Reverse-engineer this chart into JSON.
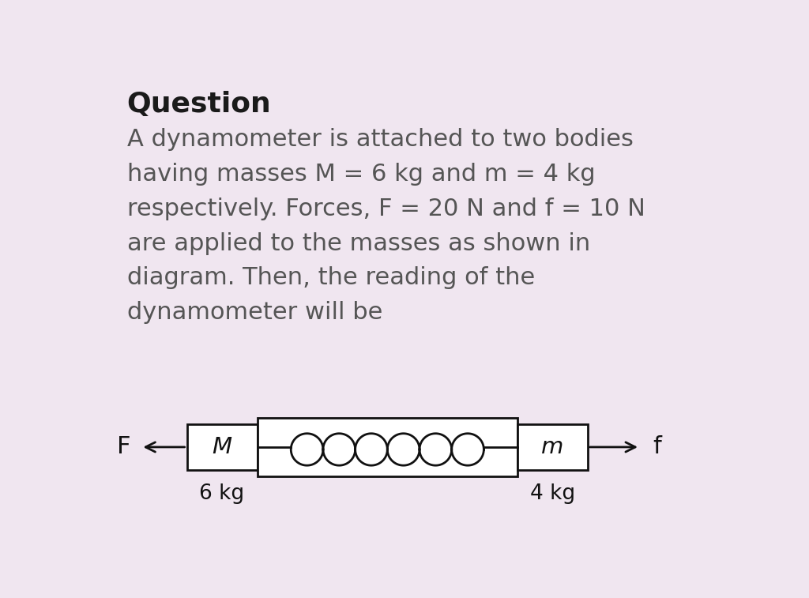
{
  "background_color": "#f0e6f0",
  "title": "Question",
  "title_fontsize": 26,
  "title_color": "#1a1a1a",
  "body_text": "A dynamometer is attached to two bodies\nhaving masses M = 6 kg and m = 4 kg\nrespectively. Forces, F = 20 N and f = 10 N\nare applied to the masses as shown in\ndiagram. Then, the reading of the\ndynamometer will be",
  "body_fontsize": 22,
  "body_color": "#555555",
  "M_label": "M",
  "m_label": "m",
  "M_mass": "6 kg",
  "m_mass": "4 kg",
  "F_label": "F",
  "f_label": "f",
  "box_color": "#ffffff",
  "box_edge_color": "#111111",
  "line_color": "#111111",
  "coil_color": "#111111",
  "arrow_color": "#111111",
  "text_on_diagram_color": "#111111"
}
